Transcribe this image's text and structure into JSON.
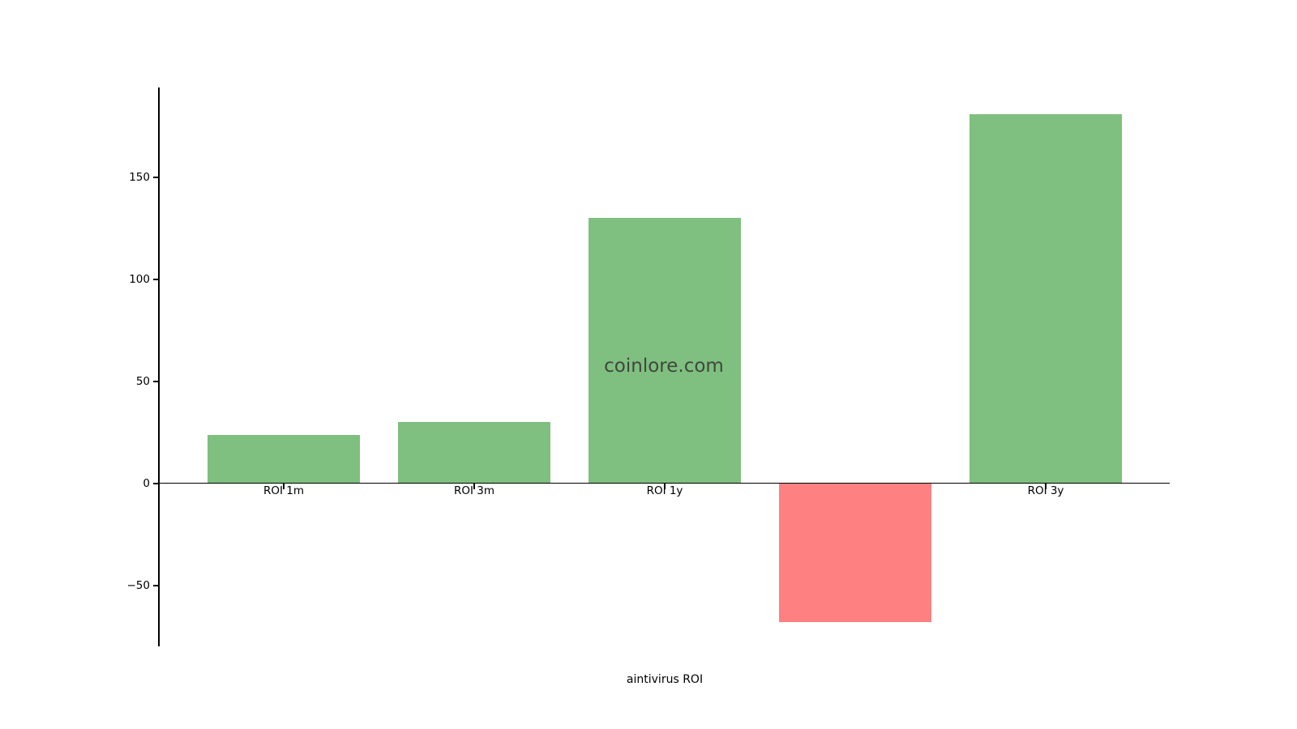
{
  "page": {
    "background_color": "#ffffff"
  },
  "watermark": {
    "text": "coinlore.com",
    "color": "#333333"
  },
  "chart_data": {
    "type": "bar",
    "title": "",
    "xlabel": "aintivirus ROI",
    "ylabel": "",
    "categories": [
      "ROI 1m",
      "ROI 3m",
      "ROI 1y",
      "",
      "ROI 3y"
    ],
    "values": [
      24,
      30,
      130,
      -68,
      181
    ],
    "bar_colors": [
      "#7fbf7f",
      "#7fbf7f",
      "#7fbf7f",
      "#ff8080",
      "#7fbf7f"
    ],
    "positive_color": "#7fbf7f",
    "negative_color": "#ff8080",
    "y_ticks": [
      {
        "label": "−50",
        "value": -50
      },
      {
        "label": "0",
        "value": 0
      },
      {
        "label": "50",
        "value": 50
      },
      {
        "label": "100",
        "value": 100
      },
      {
        "label": "150",
        "value": 150
      }
    ],
    "ylim": [
      -80,
      194
    ],
    "grid": false,
    "legend": false,
    "axis_color": "#000000",
    "note": "fourth bar tick label hidden behind negative bar"
  }
}
